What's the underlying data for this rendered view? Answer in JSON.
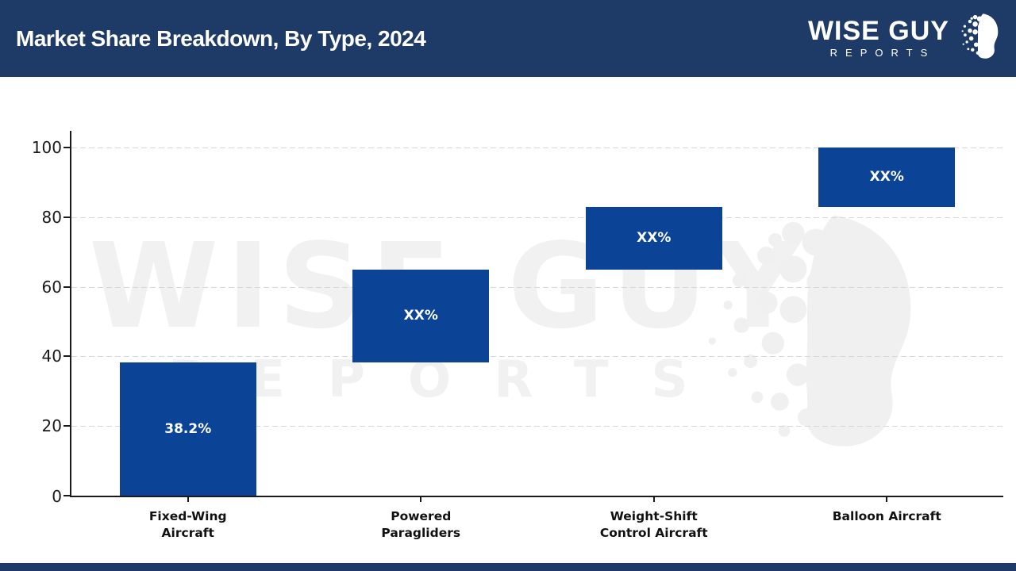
{
  "header": {
    "title": "Market Share Breakdown, By Type, 2024",
    "bg_color": "#1e3a66",
    "logo": {
      "name": "WISE GUY",
      "subtitle": "REPORTS"
    }
  },
  "watermark": {
    "line1": "WISE GUY",
    "line2": "REPORTS"
  },
  "chart_data": {
    "type": "bar",
    "subtype": "waterfall",
    "title": "Market Share Breakdown, By Type, 2024",
    "categories": [
      "Fixed-Wing Aircraft",
      "Powered Paragliders",
      "Weight-Shift Control Aircraft",
      "Balloon Aircraft"
    ],
    "category_lines": [
      [
        "Fixed-Wing",
        "Aircraft"
      ],
      [
        "Powered",
        "Paragliders"
      ],
      [
        "Weight-Shift",
        "Control Aircraft"
      ],
      [
        "Balloon Aircraft"
      ]
    ],
    "segments": [
      {
        "category": "Fixed-Wing Aircraft",
        "start": 0,
        "end": 38.2,
        "label": "38.2%"
      },
      {
        "category": "Powered Paragliders",
        "start": 38.2,
        "end": 65,
        "label": "XX%"
      },
      {
        "category": "Weight-Shift Control Aircraft",
        "start": 65,
        "end": 83,
        "label": "XX%"
      },
      {
        "category": "Balloon Aircraft",
        "start": 83,
        "end": 100,
        "label": "XX%"
      }
    ],
    "xlabel": "",
    "ylabel": "",
    "ylim": [
      0,
      100
    ],
    "yticks": [
      0,
      20,
      40,
      60,
      80,
      100
    ],
    "grid": "horizontal-dashed",
    "legend": "none",
    "bar_color": "#0b4397",
    "bar_label_color": "#ffffff"
  },
  "footer": {
    "bg_color": "#1e3a66"
  }
}
